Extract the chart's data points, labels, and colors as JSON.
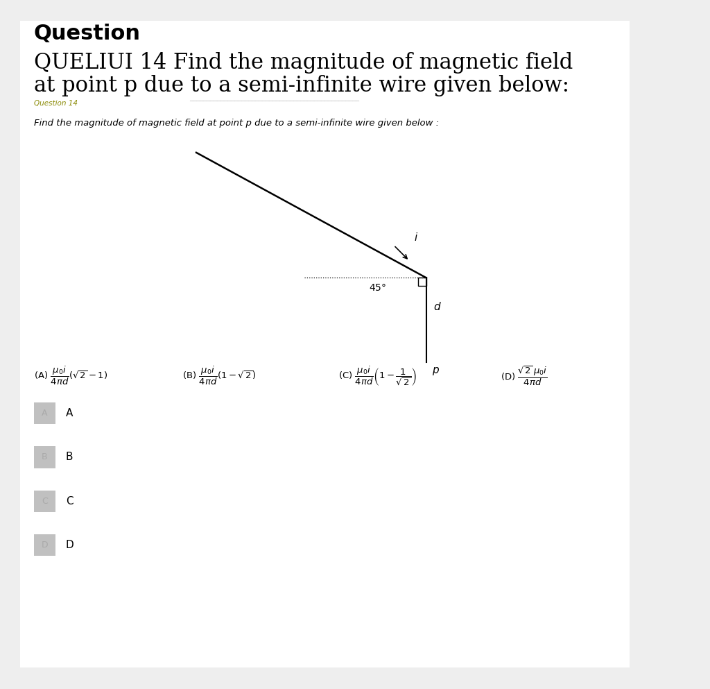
{
  "title": "Question",
  "title_fontsize": 22,
  "main_question_line1": "QUELIUI 14 Find the magnitude of magnetic field",
  "main_question_line2": "at point p due to a semi-infinite wire given below:",
  "main_question_fontsize": 22,
  "watermark_left": "Question 14",
  "watermark_color": "#888800",
  "sub_question": "Find the magnitude of magnetic field at point p due to a semi-infinite wire given below :",
  "sub_question_fontsize": 9.5,
  "background_color": "#eeeeee",
  "inner_background": "#ffffff",
  "text_color": "#000000",
  "choices": [
    "A",
    "B",
    "C",
    "D"
  ],
  "choice_button_color": "#c0c0c0",
  "choice_label_color": "#aaaaaa"
}
